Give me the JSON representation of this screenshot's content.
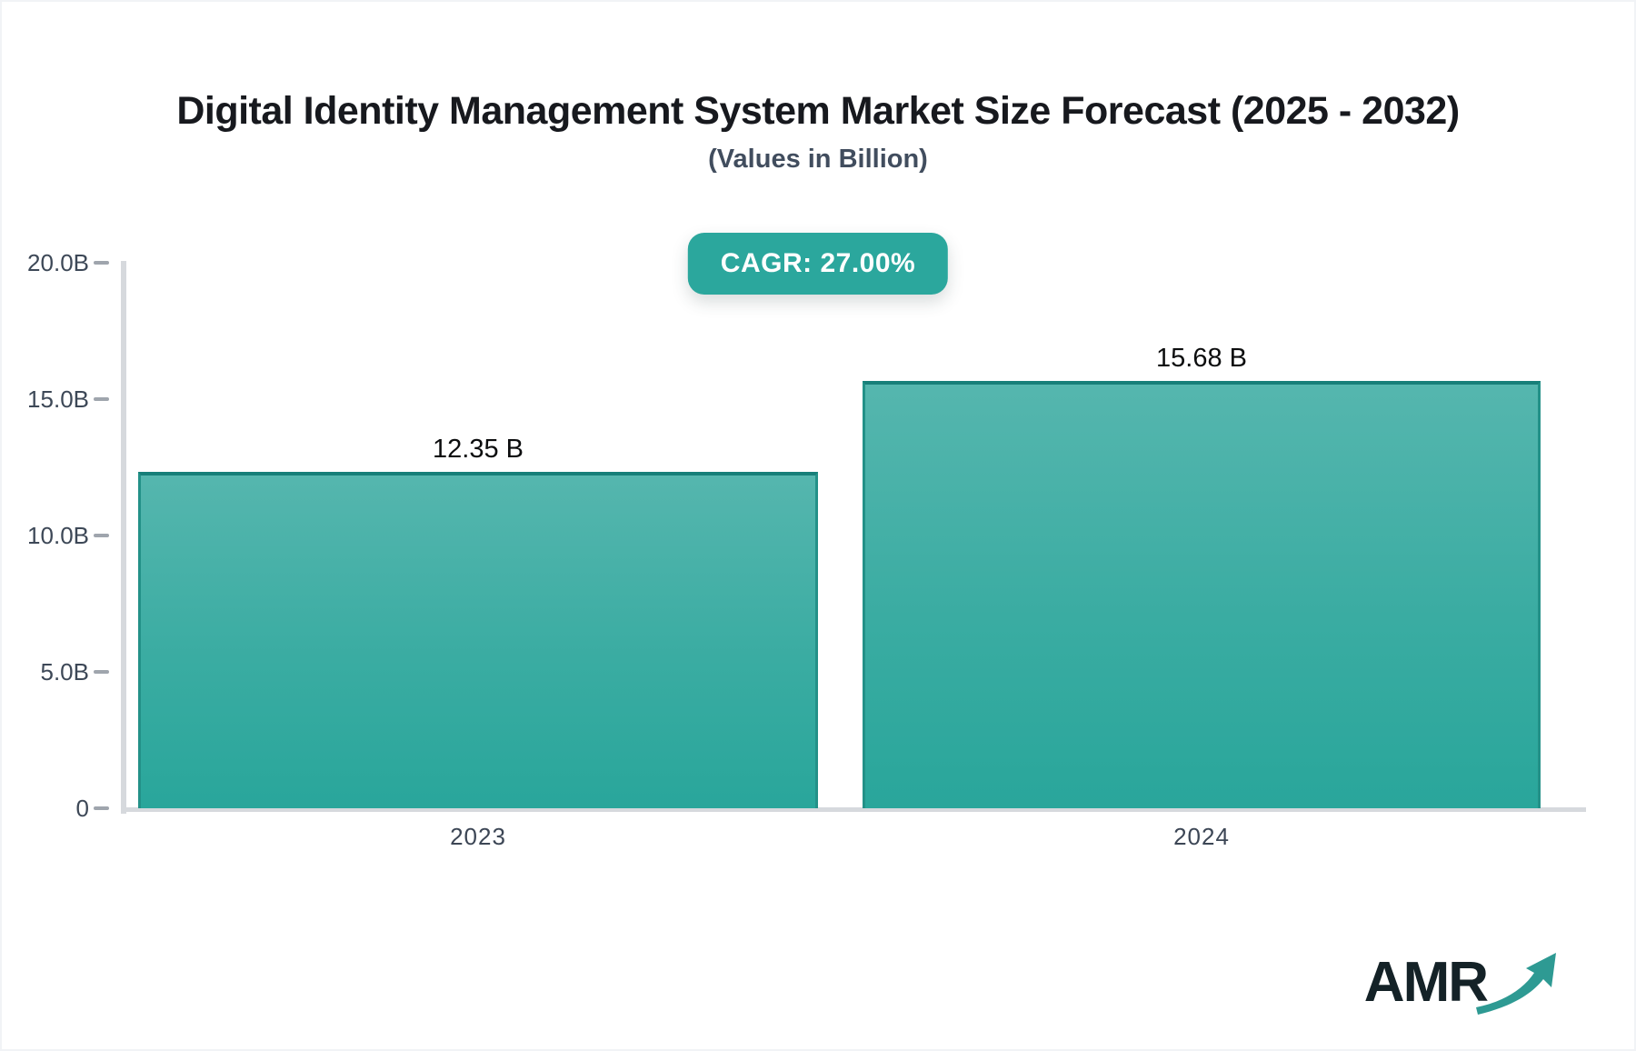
{
  "title": "Digital Identity Management System Market Size Forecast (2025 - 2032)",
  "subtitle": "(Values in Billion)",
  "badge": {
    "label": "CAGR: 27.00%"
  },
  "logo": {
    "text": "AMR",
    "arrow_icon": "trending-up-arrow"
  },
  "colors": {
    "accent_teal": "#2ba79d",
    "bar_gradient_top": "#55b6ae",
    "bar_gradient_bottom": "#29a69b",
    "bar_border": "#1f8d85",
    "axis_gray": "#d6d9dd",
    "tick_gray": "#9fa5ad",
    "label_slate": "#3d4857",
    "logo_navy": "#142227"
  },
  "chart_data": {
    "type": "bar",
    "title": "Digital Identity Management System Market Size Forecast (2025 - 2032)",
    "subtitle": "(Values in Billion)",
    "categories": [
      "2023",
      "2024"
    ],
    "values": [
      12.35,
      15.68
    ],
    "value_labels": [
      "12.35 B",
      "15.68 B"
    ],
    "xlabel": "",
    "ylabel": "",
    "ylim": [
      0,
      20
    ],
    "yticks": [
      {
        "value": 20,
        "label": "20.0B"
      },
      {
        "value": 15,
        "label": "15.0B"
      },
      {
        "value": 10,
        "label": "10.0B"
      },
      {
        "value": 5,
        "label": "5.0B"
      },
      {
        "value": 0,
        "label": "0"
      }
    ],
    "grid": false,
    "legend": false,
    "annotation": "CAGR: 27.00%"
  }
}
